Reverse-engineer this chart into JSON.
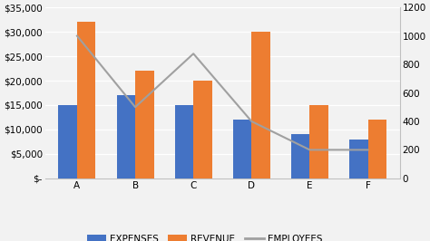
{
  "categories": [
    "A",
    "B",
    "C",
    "D",
    "E",
    "F"
  ],
  "expenses": [
    15000,
    17000,
    15000,
    12000,
    9000,
    8000
  ],
  "revenue": [
    32000,
    22000,
    20000,
    30000,
    15000,
    12000
  ],
  "employees": [
    1000,
    500,
    875,
    400,
    200,
    200
  ],
  "bar_color_expenses": "#4472C4",
  "bar_color_revenue": "#ED7D31",
  "line_color_employees": "#A0A0A0",
  "left_ylim": [
    0,
    35000
  ],
  "right_ylim": [
    0,
    1200
  ],
  "left_yticks": [
    0,
    5000,
    10000,
    15000,
    20000,
    25000,
    30000,
    35000
  ],
  "right_yticks": [
    0,
    200,
    400,
    600,
    800,
    1000,
    1200
  ],
  "legend_labels": [
    "EXPENSES",
    "REVENUE",
    "EMPLOYEES"
  ],
  "background_color": "#f2f2f2",
  "plot_bg_color": "#f2f2f2",
  "grid_color": "#ffffff",
  "bar_width": 0.32,
  "tick_fontsize": 7.5,
  "legend_fontsize": 7.5
}
